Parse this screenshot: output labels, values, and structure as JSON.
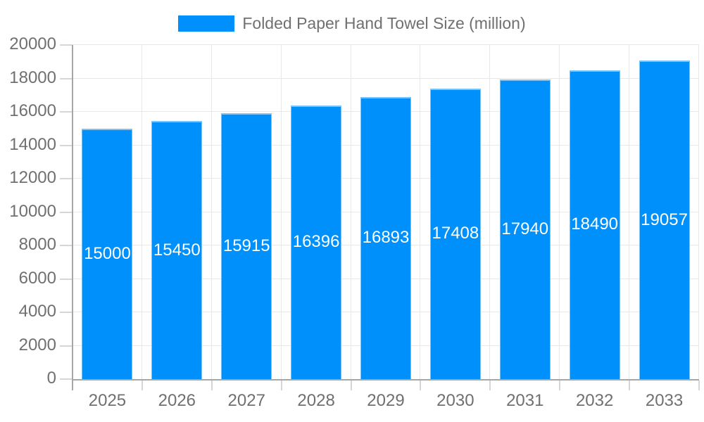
{
  "legend": {
    "label": "Folded Paper Hand Towel Size (million)",
    "swatch_color": "#0090FB"
  },
  "chart_data": {
    "type": "bar",
    "title": "Folded Paper Hand Towel Size (million)",
    "categories": [
      "2025",
      "2026",
      "2027",
      "2028",
      "2029",
      "2030",
      "2031",
      "2032",
      "2033"
    ],
    "series": [
      {
        "name": "Folded Paper Hand Towel Size (million)",
        "values": [
          15000,
          15450,
          15915,
          16396,
          16893,
          17408,
          17940,
          18490,
          19057
        ]
      }
    ],
    "bar_labels": [
      "15000",
      "15450",
      "15915",
      "16396",
      "16893",
      "17408",
      "17940",
      "18490",
      "19057"
    ],
    "ylim": [
      0,
      20000
    ],
    "ytick_step": 2000,
    "ytick_labels": [
      "0",
      "2000",
      "4000",
      "6000",
      "8000",
      "10000",
      "12000",
      "14000",
      "16000",
      "18000",
      "20000"
    ],
    "grid": true,
    "legend_position": "top",
    "colors": {
      "bar": "#0090FB",
      "bar_top_edge": "#7CC3FA",
      "bar_label": "#FFFFFF",
      "axis_text": "#707070",
      "axis_line": "#A6A6A6",
      "gridline": "#E8E8E8",
      "tick": "#D6D6D6",
      "background": "#FFFFFF"
    }
  }
}
